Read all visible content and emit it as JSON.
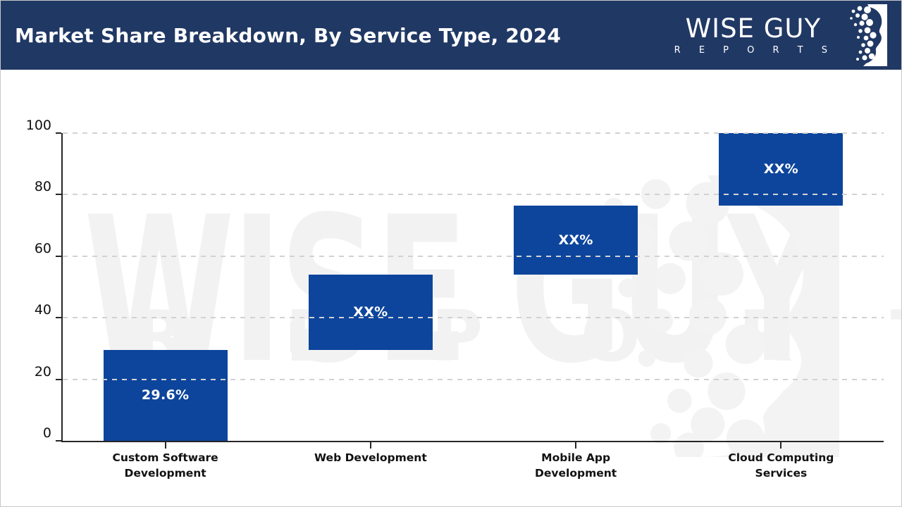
{
  "header": {
    "title": "Market Share Breakdown, By Service Type, 2024",
    "logo": {
      "line1": "WISE GUY",
      "line2": "REPORTS"
    }
  },
  "watermark": {
    "line1": "WISE GUY",
    "line2": "REPORTS"
  },
  "colors": {
    "header_bg": "#203864",
    "bar": "#0d459c",
    "bar_label": "#ffffff",
    "gridline": "#d2d2d2",
    "axis": "#262626",
    "watermark": "#f2f2f2"
  },
  "chart_data": {
    "type": "bar",
    "subtype": "waterfall",
    "title": "Market Share Breakdown, By Service Type, 2024",
    "xlabel": "",
    "ylabel": "",
    "ylim": [
      0,
      100
    ],
    "yticks": [
      0,
      20,
      40,
      60,
      80,
      100
    ],
    "grid": "dashed horizontal",
    "legend": "none",
    "categories": [
      "Custom Software\nDevelopment",
      "Web Development",
      "Mobile App\nDevelopment",
      "Cloud Computing\nServices"
    ],
    "segments": [
      {
        "category": "Custom Software\nDevelopment",
        "start": 0,
        "end": 29.6,
        "label": "29.6%"
      },
      {
        "category": "Web Development",
        "start": 29.6,
        "end": 54.1,
        "label": "XX%"
      },
      {
        "category": "Mobile App\nDevelopment",
        "start": 54.1,
        "end": 76.5,
        "label": "XX%"
      },
      {
        "category": "Cloud Computing\nServices",
        "start": 76.5,
        "end": 100,
        "label": "XX%"
      }
    ]
  }
}
